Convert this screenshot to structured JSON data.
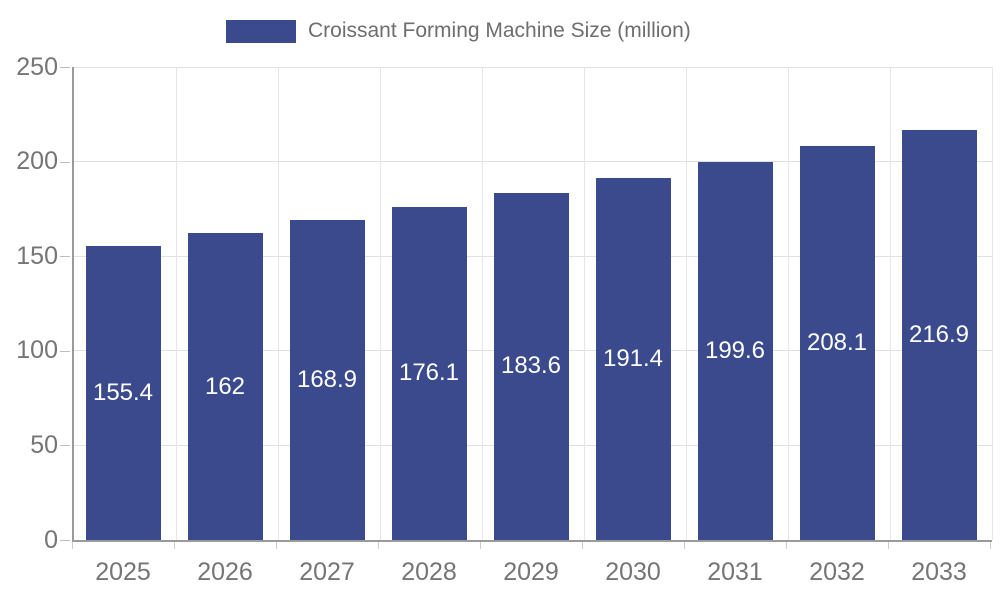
{
  "legend": {
    "label": "Croissant Forming Machine Size (million)"
  },
  "colors": {
    "bar": "#3A4A8C",
    "bar_value_text": "#FFFFFF",
    "axis_line": "#9A9A9A",
    "grid_line": "#E0E0E0",
    "tick_text": "#757575",
    "legend_text": "#6E6E6E",
    "background": "#FFFFFF"
  },
  "chart_data": {
    "type": "bar",
    "title": "",
    "series_name": "Croissant Forming Machine Size (million)",
    "categories": [
      "2025",
      "2026",
      "2027",
      "2028",
      "2029",
      "2030",
      "2031",
      "2032",
      "2033"
    ],
    "values": [
      155.4,
      162,
      168.9,
      176.1,
      183.6,
      191.4,
      199.6,
      208.1,
      216.9
    ],
    "value_labels": [
      "155.4",
      "162",
      "168.9",
      "176.1",
      "183.6",
      "191.4",
      "199.6",
      "208.1",
      "216.9"
    ],
    "xlabel": "",
    "ylabel": "",
    "ylim": [
      0,
      250
    ],
    "yticks": [
      0,
      50,
      100,
      150,
      200,
      250
    ],
    "grid": true,
    "legend_position": "top",
    "value_label_position": "inside-center"
  }
}
